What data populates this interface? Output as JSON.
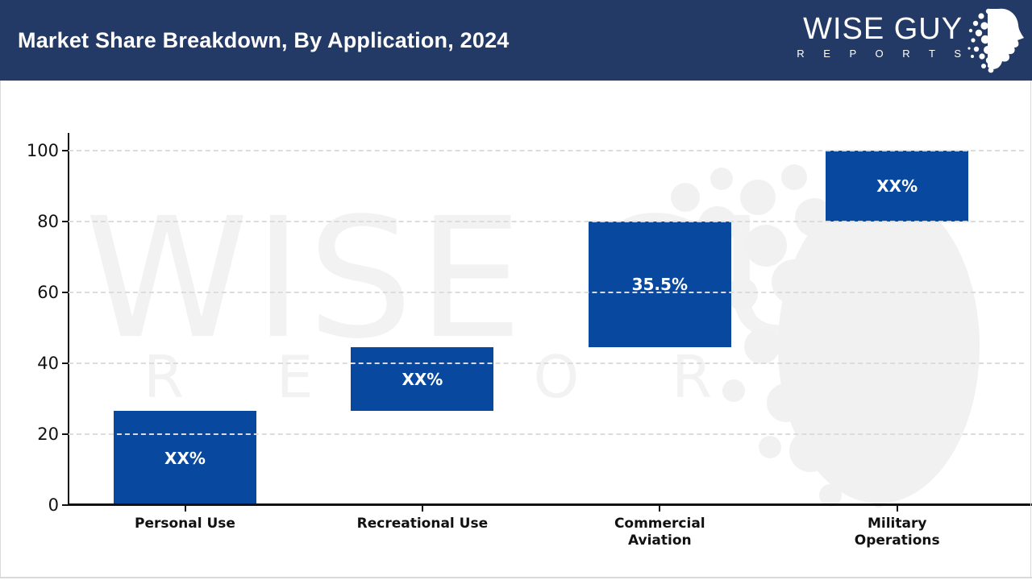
{
  "header": {
    "title": "Market Share Breakdown, By Application, 2024",
    "logo": {
      "line1": "WISE GUY",
      "line2": "R E P O R T S"
    }
  },
  "watermark": {
    "line1": "WISE GU",
    "line2": "R E P O R T S"
  },
  "colors": {
    "header_bg": "#243a66",
    "bar": "#08489e",
    "bar_label": "#ffffff",
    "gridline": "#dcdcdc",
    "axis": "#111111",
    "watermark": "#f2f2f2",
    "border": "#d9d9d9"
  },
  "chart_data": {
    "type": "bar",
    "subtype": "floating-waterfall",
    "title": "Market Share Breakdown, By Application, 2024",
    "categories": [
      "Personal Use",
      "Recreational Use",
      "Commercial Aviation",
      "Military Operations"
    ],
    "category_label_lines": [
      [
        "Personal Use"
      ],
      [
        "Recreational Use"
      ],
      [
        "Commercial",
        "Aviation"
      ],
      [
        "Military",
        "Operations"
      ]
    ],
    "bars": [
      {
        "category": "Personal Use",
        "start": 0,
        "end": 26.5,
        "value": 26.5,
        "value_label": "XX%"
      },
      {
        "category": "Recreational Use",
        "start": 26.5,
        "end": 44.5,
        "value": 18,
        "value_label": "XX%"
      },
      {
        "category": "Commercial Aviation",
        "start": 44.5,
        "end": 80,
        "value": 35.5,
        "value_label": "35.5%"
      },
      {
        "category": "Military Operations",
        "start": 80,
        "end": 100,
        "value": 20,
        "value_label": "XX%"
      }
    ],
    "xlabel": "",
    "ylabel": "",
    "ylim": [
      0,
      100
    ],
    "yticks": [
      0,
      20,
      40,
      60,
      80,
      100
    ],
    "grid": "horizontal-dashed",
    "legend": false,
    "bar_color": "#08489e"
  }
}
